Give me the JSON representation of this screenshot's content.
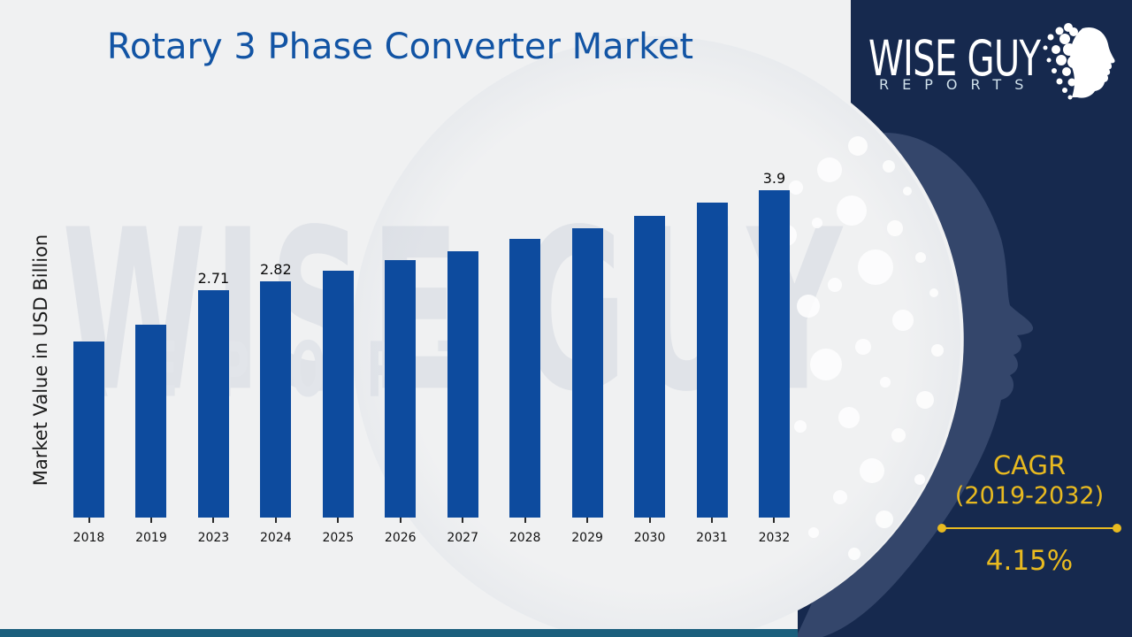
{
  "title": "Rotary 3 Phase Converter Market",
  "watermark": {
    "line1": "WISE GUY",
    "line2": "REPORTS"
  },
  "logo": {
    "name": "WISE GUY",
    "sub": "REPORTS",
    "face_icon": "face-profile-dots-icon"
  },
  "cagr": {
    "label": "CAGR",
    "range": "(2019-2032)",
    "value": "4.15%"
  },
  "colors": {
    "background": "#f0f1f2",
    "bar": "#0d4b9e",
    "title": "#1254a4",
    "navy_panel": "#16294e",
    "accent_yellow": "#e8ba20",
    "bottom_strip_teal": "#1b5f7d"
  },
  "chart_data": {
    "type": "bar",
    "title": "Rotary 3 Phase Converter Market",
    "xlabel": "",
    "ylabel": "Market Value in USD Billion",
    "categories": [
      "2018",
      "2019",
      "2023",
      "2024",
      "2025",
      "2026",
      "2027",
      "2028",
      "2029",
      "2030",
      "2031",
      "2032"
    ],
    "values": [
      2.1,
      2.3,
      2.71,
      2.82,
      2.94,
      3.07,
      3.18,
      3.32,
      3.45,
      3.6,
      3.75,
      3.9
    ],
    "point_labels": [
      "",
      "",
      "2.71",
      "2.82",
      "",
      "",
      "",
      "",
      "",
      "",
      "",
      "3.9"
    ],
    "bar_color": "#0d4b9e",
    "ylim": [
      0,
      4.3
    ],
    "grid": false,
    "legend": "none",
    "unit": "USD Billion"
  }
}
